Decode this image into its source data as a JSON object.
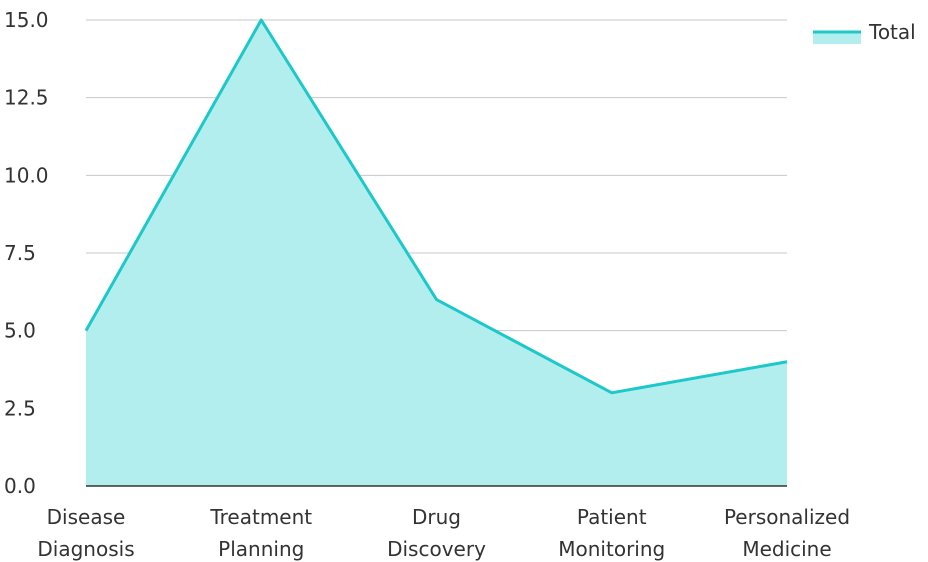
{
  "chart_data": {
    "type": "area",
    "categories": [
      [
        "Disease",
        "Diagnosis"
      ],
      [
        "Treatment",
        "Planning"
      ],
      [
        "Drug",
        "Discovery"
      ],
      [
        "Patient",
        "Monitoring"
      ],
      [
        "Personalized",
        "Medicine"
      ]
    ],
    "series": [
      {
        "name": "Total",
        "values": [
          5,
          15,
          6,
          3,
          4
        ]
      }
    ],
    "ylim": [
      0,
      15
    ],
    "yticks": [
      "0.0",
      "2.5",
      "5.0",
      "7.5",
      "10.0",
      "12.5",
      "15.0"
    ],
    "grid": true,
    "legend_position": "top-right",
    "colors": {
      "line": "#1ec8c8",
      "fill": "#b2eeee",
      "grid": "#c8c8c8",
      "axis": "#333333"
    }
  }
}
